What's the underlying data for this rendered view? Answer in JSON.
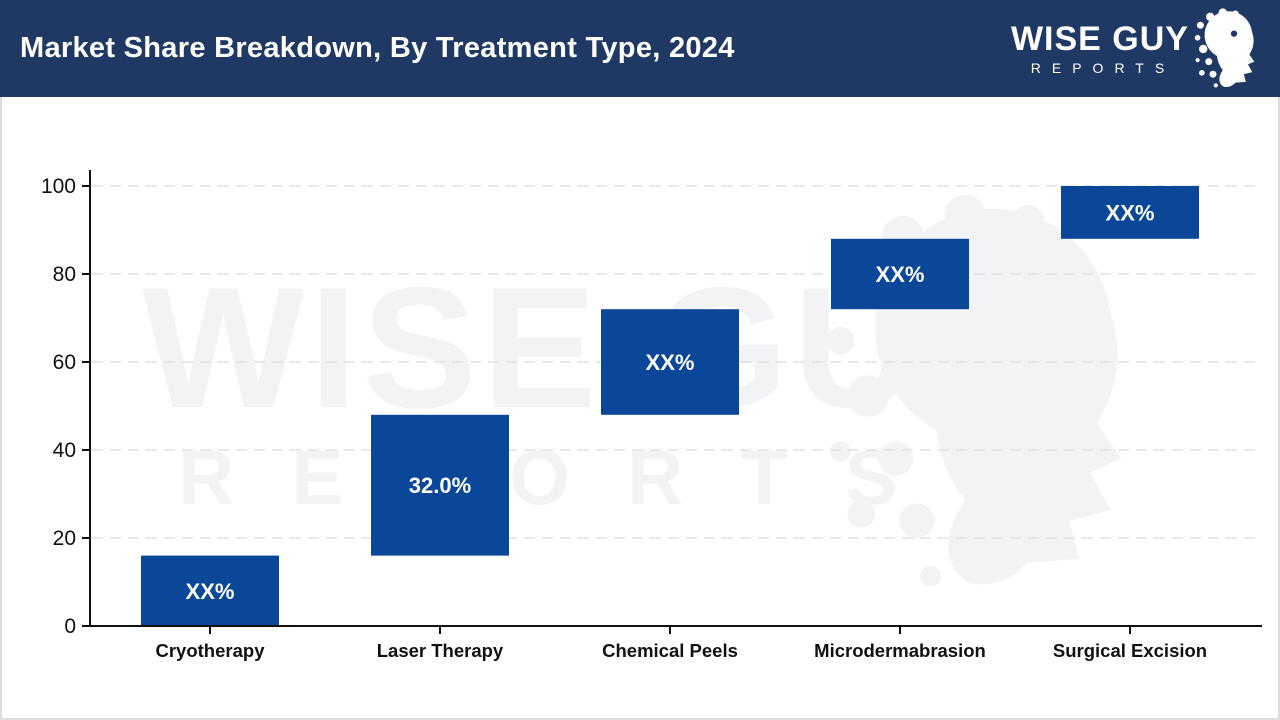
{
  "header": {
    "title": "Market Share Breakdown, By Treatment Type, 2024",
    "logo": {
      "name": "WISE GUY",
      "sub": "REPORTS"
    }
  },
  "watermark": {
    "name": "WISE GUY",
    "sub": "REPORTS"
  },
  "chart_data": {
    "type": "bar",
    "variant": "floating-waterfall-segments",
    "title": "Market Share Breakdown, By Treatment Type, 2024",
    "categories": [
      "Cryotherapy",
      "Laser Therapy",
      "Chemical Peels",
      "Microdermabrasion",
      "Surgical Excision"
    ],
    "bars": [
      {
        "category": "Cryotherapy",
        "start": 0,
        "end": 16,
        "label": "XX%"
      },
      {
        "category": "Laser Therapy",
        "start": 16,
        "end": 48,
        "label": "32.0%"
      },
      {
        "category": "Chemical Peels",
        "start": 48,
        "end": 72,
        "label": "XX%"
      },
      {
        "category": "Microdermabrasion",
        "start": 72,
        "end": 88,
        "label": "XX%"
      },
      {
        "category": "Surgical Excision",
        "start": 88,
        "end": 100,
        "label": "XX%"
      }
    ],
    "ylim": [
      0,
      100
    ],
    "yticks": [
      0,
      20,
      40,
      60,
      80,
      100
    ],
    "xlabel": "",
    "ylabel": "",
    "grid": "horizontal-dashed",
    "colors": {
      "bar": "#0a4799",
      "header_bg": "#1f3864",
      "grid": "#e1e1e4",
      "axis": "#111111",
      "tick_text": "#111111",
      "bar_label": "#ffffff",
      "watermark": "#f3f3f5"
    }
  }
}
